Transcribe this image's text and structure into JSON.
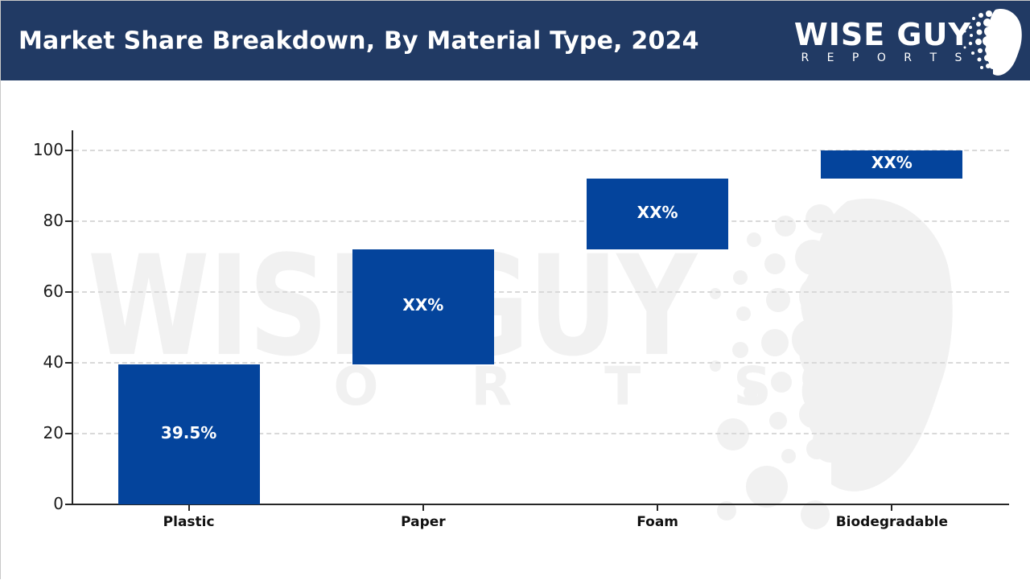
{
  "header": {
    "title": "Market Share Breakdown, By Material Type, 2024",
    "logo": {
      "line1": "WISE GUY",
      "line2": "R E P O R T S"
    }
  },
  "watermark": {
    "line1": "WISE GUY",
    "line2": "P O R T S"
  },
  "colors": {
    "header_bg": "#213a64",
    "bar": "#04449c",
    "grid": "#d9d9d9",
    "axis": "#262626",
    "bar_label": "#ffffff",
    "tick_label": "#1a1a1a",
    "watermark": "#f1f1f1"
  },
  "chart_data": {
    "type": "bar",
    "subtype": "waterfall-cumulative",
    "title": "Market Share Breakdown, By Material Type, 2024",
    "xlabel": "",
    "ylabel": "",
    "categories": [
      "Plastic",
      "Paper",
      "Foam",
      "Biodegradable"
    ],
    "segments": [
      {
        "category": "Plastic",
        "start": 0,
        "end": 39.5,
        "label": "39.5%"
      },
      {
        "category": "Paper",
        "start": 39.5,
        "end": 72,
        "label": "XX%"
      },
      {
        "category": "Foam",
        "start": 72,
        "end": 92,
        "label": "XX%"
      },
      {
        "category": "Biodegradable",
        "start": 92,
        "end": 100,
        "label": "XX%"
      }
    ],
    "yticks": [
      0,
      20,
      40,
      60,
      80,
      100
    ],
    "ylim": [
      0,
      105
    ],
    "grid": "horizontal-dashed",
    "legend": "none"
  }
}
